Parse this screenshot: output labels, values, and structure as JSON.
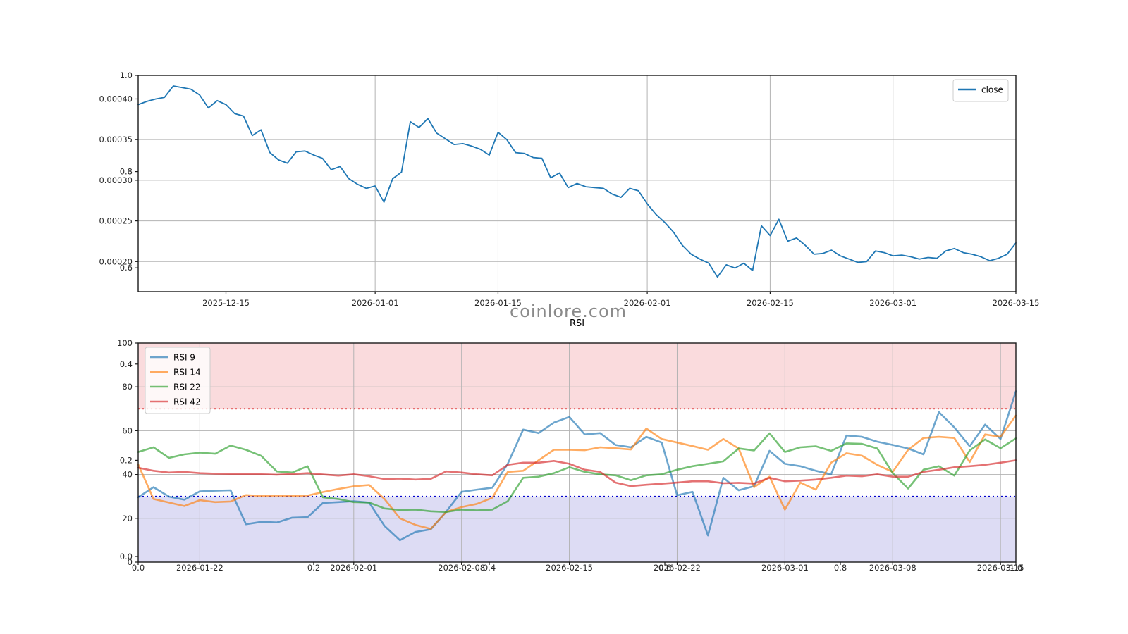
{
  "watermark": "coinlore.com",
  "colors": {
    "spine": "#1a1a1a",
    "grid": "#b3b3b3",
    "tick_label": "#262626",
    "close_line": "#1f77b4",
    "rsi9": "#1f77b4",
    "rsi14": "#ff7f0e",
    "rsi22": "#2ca02c",
    "rsi42": "#d62728",
    "overbought_band": "#fadbdd",
    "oversold_band": "#dddcf4",
    "overbought_ref": "#d40000",
    "oversold_ref": "#0000cd",
    "legend_border": "#cccccc",
    "watermark_color": "#8a8a8a"
  },
  "phantom_axis": {
    "y_labels": [
      "1.0",
      "0.8",
      "0.6",
      "0.4",
      "0.2",
      "0.0"
    ],
    "x_labels": [
      "0.0",
      "0.2",
      "0.4",
      "0.6",
      "0.8",
      "1.0"
    ]
  },
  "chart_data": [
    {
      "type": "line",
      "panel": "price",
      "title": "",
      "grid": true,
      "legend": {
        "position": "upper right",
        "entries": [
          {
            "label": "close",
            "color": "#1f77b4"
          }
        ]
      },
      "ylim": [
        0.000163,
        0.000429
      ],
      "y_tick_labels": [
        "0.00020",
        "0.00025",
        "0.00030",
        "0.00035",
        "0.00040"
      ],
      "y_tick_values": [
        0.0002,
        0.00025,
        0.0003,
        0.00035,
        0.0004
      ],
      "x_tick_labels": [
        "2025-12-15",
        "2026-01-01",
        "2026-01-15",
        "2026-02-01",
        "2026-02-15",
        "2026-03-01",
        "2026-03-15"
      ],
      "x_tick_index": [
        10,
        27,
        41,
        58,
        72,
        86,
        100
      ],
      "x_range": [
        "2025-12-05",
        "2026-03-16"
      ],
      "series": [
        {
          "name": "close",
          "color": "#1f77b4",
          "width": 1.8,
          "opacity": 1,
          "values": [
            0.000393,
            0.000397,
            0.0004,
            0.000402,
            0.000416,
            0.000414,
            0.000412,
            0.000405,
            0.000389,
            0.000398,
            0.000393,
            0.000382,
            0.000379,
            0.000355,
            0.000362,
            0.000334,
            0.000325,
            0.000321,
            0.000335,
            0.000336,
            0.000331,
            0.000327,
            0.000313,
            0.000317,
            0.000302,
            0.000295,
            0.00029,
            0.000293,
            0.000273,
            0.000302,
            0.00031,
            0.000372,
            0.000365,
            0.000376,
            0.000358,
            0.000351,
            0.000344,
            0.000345,
            0.000342,
            0.000338,
            0.000331,
            0.000359,
            0.00035,
            0.000334,
            0.000333,
            0.000328,
            0.000327,
            0.000303,
            0.000309,
            0.000291,
            0.000296,
            0.000292,
            0.000291,
            0.00029,
            0.000283,
            0.000279,
            0.00029,
            0.000287,
            0.000271,
            0.000258,
            0.000248,
            0.000236,
            0.00022,
            0.000209,
            0.000203,
            0.000198,
            0.000181,
            0.000196,
            0.000192,
            0.000198,
            0.000189,
            0.000244,
            0.000232,
            0.000252,
            0.000225,
            0.000229,
            0.00022,
            0.000209,
            0.00021,
            0.000214,
            0.000207,
            0.000203,
            0.000199,
            0.0002,
            0.000213,
            0.000211,
            0.000207,
            0.000208,
            0.000206,
            0.000203,
            0.000205,
            0.000204,
            0.000213,
            0.000216,
            0.000211,
            0.000209,
            0.000206,
            0.000201,
            0.000204,
            0.000209,
            0.000223
          ]
        }
      ]
    },
    {
      "type": "line",
      "panel": "rsi",
      "title": "RSI",
      "grid": true,
      "legend": {
        "position": "upper left",
        "entries": [
          {
            "label": "RSI 9",
            "color": "#1f77b4"
          },
          {
            "label": "RSI 14",
            "color": "#ff7f0e"
          },
          {
            "label": "RSI 22",
            "color": "#2ca02c"
          },
          {
            "label": "RSI 42",
            "color": "#d62728"
          }
        ]
      },
      "ylim": [
        0,
        100
      ],
      "y_tick_labels": [
        "0",
        "20",
        "40",
        "60",
        "80",
        "100"
      ],
      "y_tick_values": [
        0,
        20,
        40,
        60,
        80,
        100
      ],
      "x_tick_labels": [
        "2026-01-22",
        "2026-02-01",
        "2026-02-08",
        "2026-02-15",
        "2026-02-22",
        "2026-03-01",
        "2026-03-08",
        "2026-03-15"
      ],
      "x_tick_index": [
        4,
        14,
        21,
        28,
        35,
        42,
        49,
        56
      ],
      "x_range": [
        "2026-01-18",
        "2026-03-16"
      ],
      "bands": [
        {
          "name": "overbought",
          "y1": 70,
          "y2": 100,
          "fill": "#fadbdd"
        },
        {
          "name": "oversold",
          "y1": 0,
          "y2": 30,
          "fill": "#dddcf4"
        }
      ],
      "ref_lines": [
        {
          "name": "overbought-threshold",
          "y": 70,
          "color": "#d40000"
        },
        {
          "name": "oversold-threshold",
          "y": 30,
          "color": "#0000cd"
        }
      ],
      "series": [
        {
          "name": "RSI 9",
          "color": "#1f77b4",
          "width": 2.6,
          "opacity": 0.65,
          "values": [
            29.6,
            34.2,
            29.9,
            28.5,
            32.3,
            32.6,
            32.8,
            17.3,
            18.4,
            18.1,
            20.3,
            20.5,
            27,
            27.4,
            27.8,
            27.2,
            16.5,
            10,
            13.8,
            15,
            23,
            32.1,
            33.1,
            34,
            44.9,
            60.5,
            58.9,
            63.7,
            66.3,
            58.3,
            58.9,
            53.5,
            52.4,
            57.2,
            54.6,
            30.5,
            32.1,
            12.2,
            38.5,
            32.8,
            34.7,
            50.8,
            44.9,
            43.8,
            41.7,
            40.1,
            57.8,
            57.2,
            55,
            53.5,
            51.9,
            49.2,
            68.5,
            61.5,
            52.9,
            62.8,
            56.2,
            78
          ]
        },
        {
          "name": "RSI 14",
          "color": "#ff7f0e",
          "width": 2.6,
          "opacity": 0.65,
          "values": [
            44.6,
            28.8,
            27.2,
            25.6,
            28.3,
            27.4,
            27.7,
            30.6,
            30.2,
            30.4,
            30.2,
            30.4,
            32,
            33.4,
            34.6,
            35.2,
            28.8,
            20,
            17,
            15.2,
            22.9,
            25.1,
            26.6,
            29.4,
            41.2,
            41.7,
            46.5,
            51.3,
            51.3,
            51.1,
            52.4,
            52,
            51.4,
            61,
            56.2,
            54.6,
            53,
            51.3,
            56.2,
            51.9,
            34.2,
            39,
            24,
            36.3,
            33.1,
            45.4,
            49.7,
            48.6,
            44.4,
            41.2,
            51.3,
            56.7,
            57.2,
            56.7,
            45.7,
            58.3,
            57.2,
            66.9
          ]
        },
        {
          "name": "RSI 22",
          "color": "#2ca02c",
          "width": 2.6,
          "opacity": 0.65,
          "values": [
            50.3,
            52.4,
            47.6,
            49.2,
            50,
            49.5,
            53.2,
            51.3,
            48.5,
            41.4,
            40.9,
            43.8,
            29.6,
            28.8,
            27.4,
            27.2,
            24.5,
            23.8,
            24,
            23.2,
            22.9,
            24,
            23.6,
            24,
            27.8,
            38.5,
            39,
            40.6,
            43.3,
            41.2,
            40.1,
            39.6,
            37.4,
            39.6,
            40.1,
            42.2,
            43.8,
            44.9,
            46,
            51.9,
            51,
            58.8,
            50.3,
            52.4,
            52.9,
            50.8,
            54.2,
            54,
            51.9,
            40.6,
            33.6,
            42.2,
            43.8,
            39.5,
            51,
            56,
            52,
            56.5
          ]
        },
        {
          "name": "RSI 42",
          "color": "#d62728",
          "width": 2.6,
          "opacity": 0.65,
          "values": [
            43.1,
            41.7,
            40.9,
            41.2,
            40.6,
            40.4,
            40.3,
            40.2,
            40.1,
            39.9,
            40.2,
            40.6,
            40,
            39.5,
            40.1,
            39.2,
            37.9,
            38.1,
            37.7,
            38,
            41.4,
            40.9,
            40.1,
            39.6,
            44.4,
            45.4,
            45.4,
            46.2,
            44.9,
            42.2,
            41.2,
            36.3,
            34.7,
            35.3,
            35.8,
            36.3,
            36.9,
            36.9,
            36,
            36.2,
            35.9,
            38.5,
            36.9,
            37.2,
            37.7,
            38.5,
            39.5,
            39.2,
            40.1,
            39,
            39,
            41.2,
            42.2,
            43.3,
            43.8,
            44.4,
            45.4,
            46.5
          ]
        }
      ]
    }
  ]
}
